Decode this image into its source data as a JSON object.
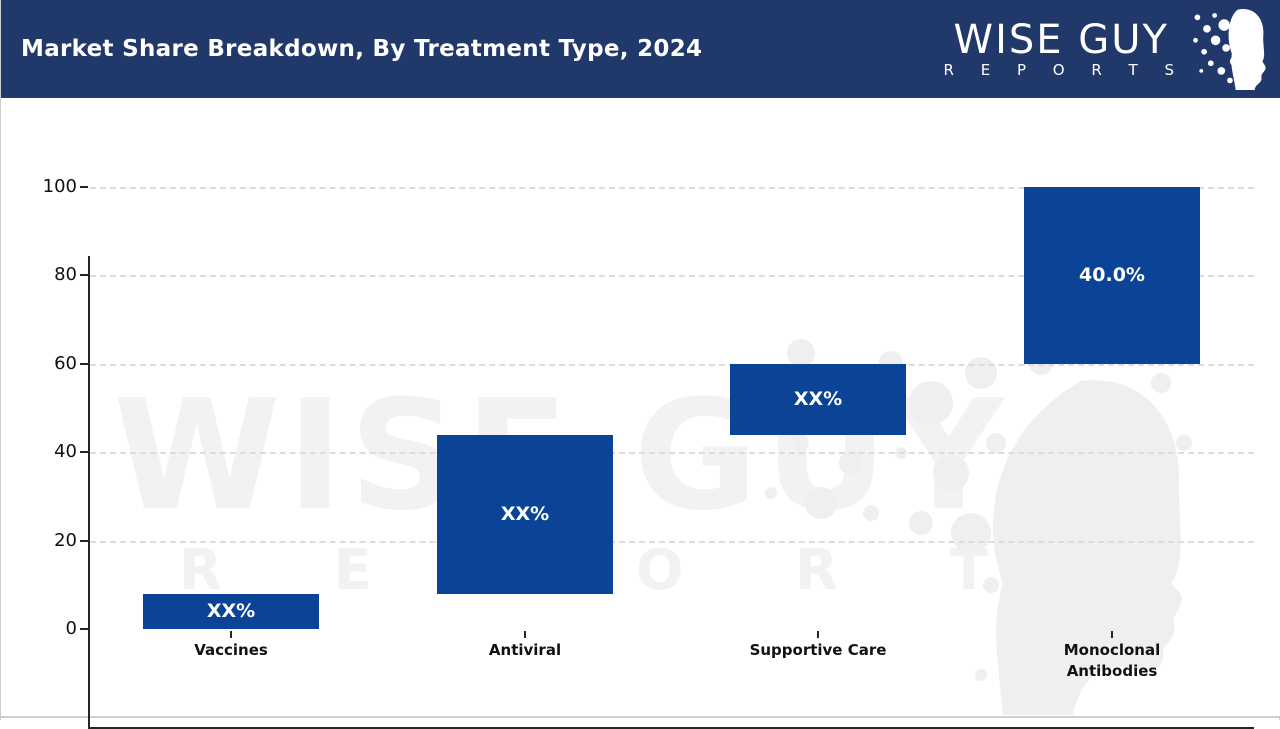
{
  "header": {
    "title": "Market Share Breakdown, By Treatment Type, 2024",
    "logo_line1": "WISE GUY",
    "logo_line2": "R E P O R T S",
    "bg_color": "#21386a"
  },
  "watermark": {
    "line1": "WISE GUY",
    "line2": "R E P O R T S"
  },
  "chart_data": {
    "type": "bar",
    "subtype": "waterfall",
    "title": "Market Share Breakdown, By Treatment Type, 2024",
    "xlabel": "",
    "ylabel": "",
    "ylim": [
      0,
      100
    ],
    "yticks": [
      0,
      20,
      40,
      60,
      80,
      100
    ],
    "grid": "dashed horizontal",
    "legend": "none",
    "bar_color": "#0b4397",
    "categories": [
      "Vaccines",
      "Antiviral",
      "Supportive Care",
      "Monoclonal Antibodies"
    ],
    "values": [
      8,
      36,
      16,
      40
    ],
    "segments": [
      {
        "label": "Vaccines",
        "start": 0,
        "end": 8,
        "display": "XX%"
      },
      {
        "label": "Antiviral",
        "start": 8,
        "end": 44,
        "display": "XX%"
      },
      {
        "label": "Supportive Care",
        "start": 44,
        "end": 60,
        "display": "XX%"
      },
      {
        "label": "Monoclonal Antibodies",
        "start": 60,
        "end": 100,
        "display": "40.0%"
      }
    ]
  }
}
